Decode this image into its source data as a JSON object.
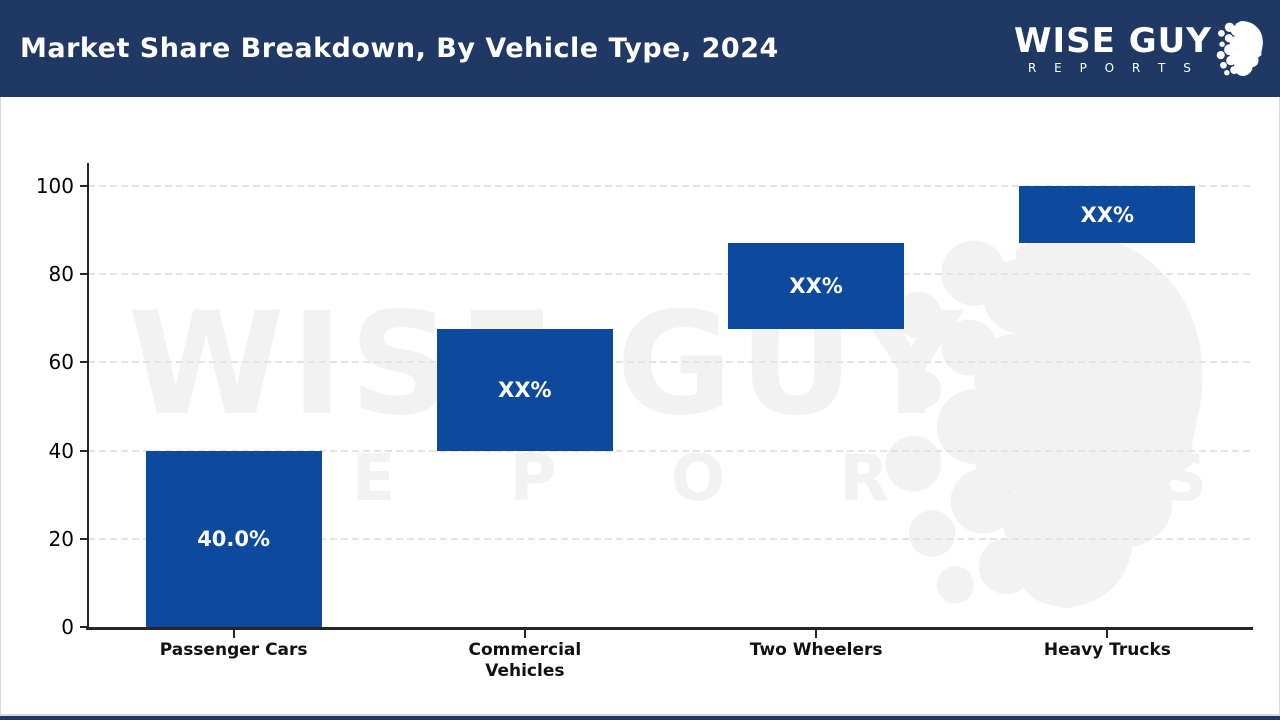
{
  "header": {
    "title": "Market Share Breakdown, By Vehicle Type, 2024",
    "bg_color": "#1f3864",
    "logo": {
      "line1": "WISE GUY",
      "line2": "R E P O R T S"
    }
  },
  "watermark": {
    "line1": "WISE GUY",
    "line2": "R E P O R T S"
  },
  "chart_data": {
    "type": "bar",
    "subtype": "waterfall-segments",
    "title": "Market Share Breakdown, By Vehicle Type, 2024",
    "xlabel": "",
    "ylabel": "",
    "categories": [
      "Passenger Cars",
      "Commercial\nVehicles",
      "Two Wheelers",
      "Heavy Trucks"
    ],
    "segments": [
      {
        "category": "Passenger Cars",
        "start": 0,
        "end": 40,
        "value": 40,
        "label": "40.0%"
      },
      {
        "category": "Commercial Vehicles",
        "start": 40,
        "end": 67.5,
        "value": 27.5,
        "label": "XX%"
      },
      {
        "category": "Two Wheelers",
        "start": 67.5,
        "end": 87,
        "value": 19.5,
        "label": "XX%"
      },
      {
        "category": "Heavy Trucks",
        "start": 87,
        "end": 100,
        "value": 13,
        "label": "XX%"
      }
    ],
    "yticks": [
      0,
      20,
      40,
      60,
      80,
      100
    ],
    "ylim": [
      0,
      105
    ],
    "grid": true,
    "grid_style": "dashed",
    "legend": "none",
    "bar_color": "#0d499c",
    "bar_label_color": "#ffffff",
    "axis_color": "#262626",
    "grid_color": "#e4e4e4"
  }
}
